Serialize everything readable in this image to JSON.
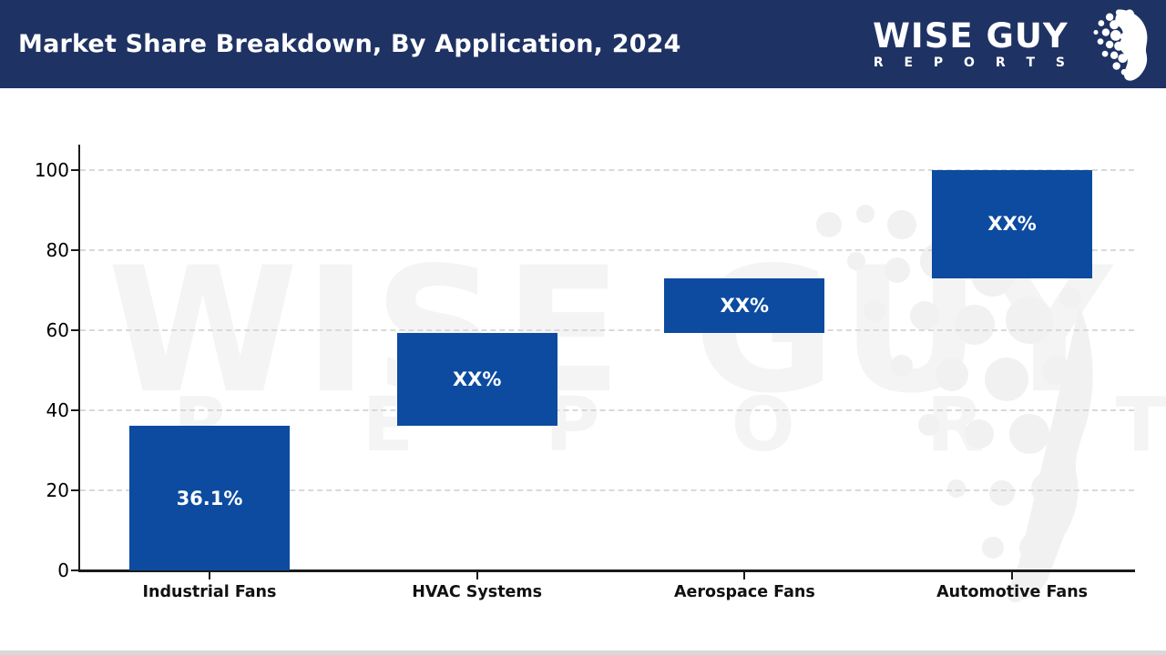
{
  "header": {
    "title": "Market Share Breakdown, By Application, 2024",
    "bg_color": "#1e3264",
    "logo": {
      "line1": "WISE GUY",
      "line2": "R E P O R T S",
      "head_icon": "dotted-head-profile"
    }
  },
  "watermark": {
    "line1": "WISE GUY",
    "line2": "R E P O R T S",
    "color": "#f4f4f4"
  },
  "chart_data": {
    "type": "bar",
    "subtype": "waterfall",
    "title": "Market Share Breakdown, By Application, 2024",
    "categories": [
      "Industrial Fans",
      "HVAC Systems",
      "Aerospace Fans",
      "Automotive Fans"
    ],
    "series": [
      {
        "name": "Market Share (%)",
        "segments": [
          {
            "category": "Industrial Fans",
            "start": 0,
            "end": 36.1,
            "label": "36.1%"
          },
          {
            "category": "HVAC Systems",
            "start": 36.1,
            "end": 59.4,
            "label": "XX%"
          },
          {
            "category": "Aerospace Fans",
            "start": 59.4,
            "end": 73.0,
            "label": "XX%"
          },
          {
            "category": "Automotive Fans",
            "start": 73.0,
            "end": 100,
            "label": "XX%"
          }
        ]
      }
    ],
    "xlabel": "",
    "ylabel": "",
    "ylim": [
      0,
      106
    ],
    "yticks": [
      0,
      20,
      40,
      60,
      80,
      100
    ],
    "grid": "horizontal-dashed",
    "legend": "none",
    "bar_color": "#0c4ba0",
    "bar_label_color": "#ffffff",
    "axis_color": "#1a1a1a",
    "gridline_color": "#d9d9d9"
  }
}
